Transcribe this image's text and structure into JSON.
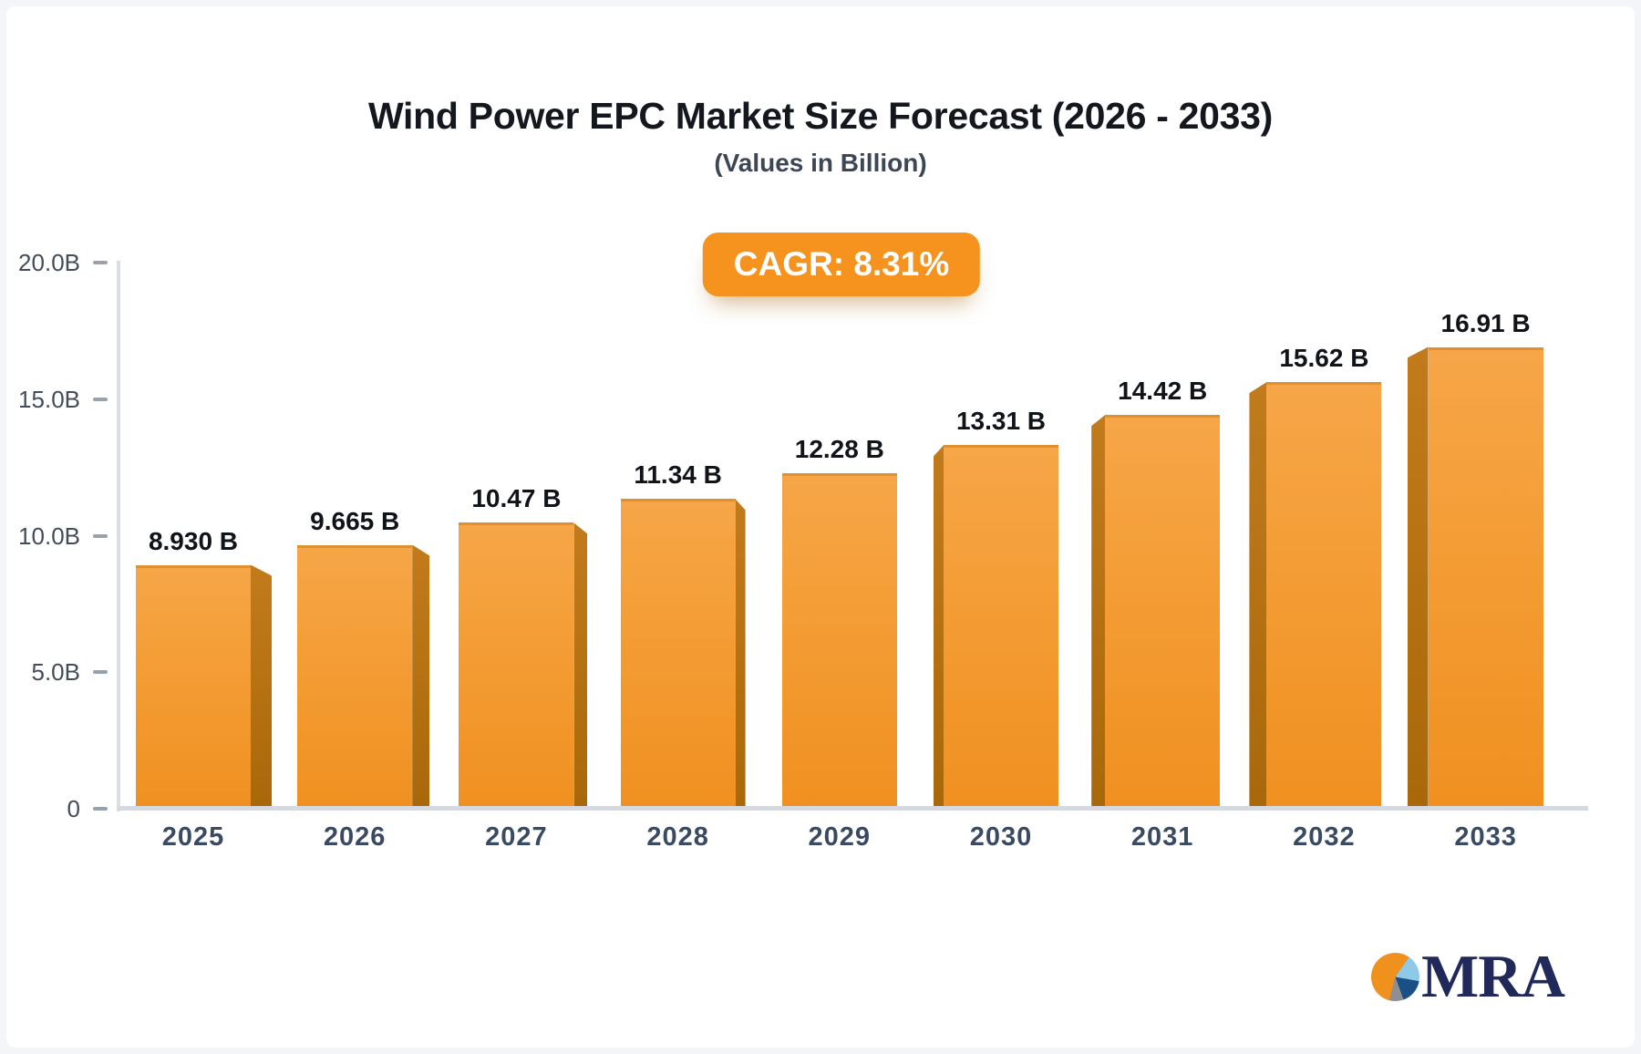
{
  "header": {
    "title": "Wind Power EPC Market Size Forecast (2026 - 2033)",
    "subtitle": "(Values in Billion)"
  },
  "badge": {
    "label": "CAGR: 8.31%",
    "background": "#f6921e",
    "text_color": "#ffffff"
  },
  "chart_data": {
    "type": "bar",
    "title": "Wind Power EPC Market Size Forecast (2026 - 2033)",
    "subtitle": "(Values in Billion)",
    "unit": "Billion",
    "cagr_label": "CAGR: 8.31%",
    "categories": [
      "2025",
      "2026",
      "2027",
      "2028",
      "2029",
      "2030",
      "2031",
      "2032",
      "2033"
    ],
    "values": [
      8.93,
      9.665,
      10.47,
      11.34,
      12.28,
      13.31,
      14.42,
      15.62,
      16.91
    ],
    "value_labels": [
      "8.930 B",
      "9.665 B",
      "10.47 B",
      "11.34 B",
      "12.28 B",
      "13.31 B",
      "14.42 B",
      "15.62 B",
      "16.91 B"
    ],
    "xlabel": "",
    "ylabel": "",
    "ylim": [
      0,
      20
    ],
    "yticks": [
      {
        "value": 20,
        "label": "20.0B"
      },
      {
        "value": 15,
        "label": "15.0B"
      },
      {
        "value": 10,
        "label": "10.0B"
      },
      {
        "value": 5,
        "label": "5.0B"
      },
      {
        "value": 0,
        "label": "0"
      }
    ],
    "grid": false,
    "legend": false,
    "bar_style": "3d-perspective-center",
    "colors": {
      "bar_top": "#f6a648",
      "bar_bottom": "#f09021",
      "bar_side": "#b06e12",
      "axis": "#d8dbe1",
      "tick": "#98a1ac",
      "value_label": "#101318",
      "category_label": "#3a4a63",
      "ytick_label": "#434c5b"
    }
  },
  "logo": {
    "text": "MRA",
    "text_color": "#20295a",
    "pie_colors": {
      "orange": "#f0911e",
      "light_blue": "#8ec9e8",
      "navy": "#1b4f86",
      "gray": "#8e8e93"
    }
  }
}
